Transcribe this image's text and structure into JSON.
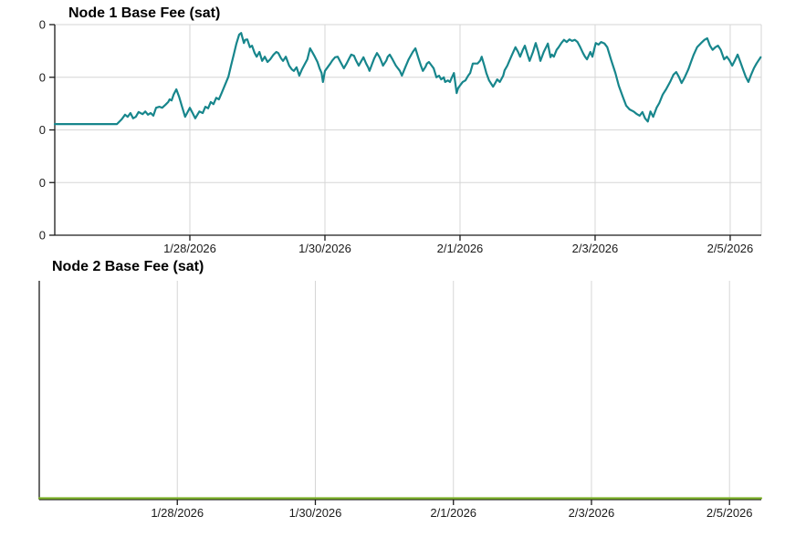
{
  "page_background": "#ffffff",
  "colors": {
    "node1_line": "#17868C",
    "node2_line": "#7FB32B",
    "gridline": "#D6D6D6",
    "axis": "#1A1A1A",
    "tick_text": "#1B1B1B",
    "title_text": "#000000"
  },
  "chart_data": [
    {
      "type": "line",
      "title": "Node 1 Base Fee (sat)",
      "xlabel": "",
      "ylabel": "",
      "x_unit": "days (0 = left edge of axis, ticks every 2 days)",
      "xlim": [
        0,
        10.46
      ],
      "ylim": [
        0,
        4
      ],
      "grid": {
        "horizontal": true,
        "vertical": true
      },
      "legend": null,
      "x_ticks": [
        {
          "pos": 2,
          "label": "1/28/2026"
        },
        {
          "pos": 4,
          "label": "1/30/2026"
        },
        {
          "pos": 6,
          "label": "2/1/2026"
        },
        {
          "pos": 8,
          "label": "2/3/2026"
        },
        {
          "pos": 10,
          "label": "2/5/2026"
        }
      ],
      "y_ticks": [
        {
          "value": 0,
          "label": "0"
        },
        {
          "value": 1,
          "label": "0"
        },
        {
          "value": 2,
          "label": "0"
        },
        {
          "value": 3,
          "label": "0"
        },
        {
          "value": 4,
          "label": "0"
        }
      ],
      "series": [
        {
          "name": "Node 1 base fee",
          "color": "#17868C",
          "points": [
            [
              0.0,
              2.11
            ],
            [
              0.14,
              2.11
            ],
            [
              0.27,
              2.11
            ],
            [
              0.41,
              2.11
            ],
            [
              0.54,
              2.11
            ],
            [
              0.68,
              2.11
            ],
            [
              0.81,
              2.11
            ],
            [
              0.92,
              2.11
            ],
            [
              0.99,
              2.2
            ],
            [
              1.04,
              2.29
            ],
            [
              1.08,
              2.25
            ],
            [
              1.12,
              2.32
            ],
            [
              1.16,
              2.22
            ],
            [
              1.2,
              2.25
            ],
            [
              1.24,
              2.34
            ],
            [
              1.3,
              2.3
            ],
            [
              1.34,
              2.35
            ],
            [
              1.38,
              2.29
            ],
            [
              1.42,
              2.32
            ],
            [
              1.46,
              2.27
            ],
            [
              1.5,
              2.42
            ],
            [
              1.55,
              2.44
            ],
            [
              1.59,
              2.42
            ],
            [
              1.64,
              2.48
            ],
            [
              1.68,
              2.53
            ],
            [
              1.7,
              2.58
            ],
            [
              1.73,
              2.56
            ],
            [
              1.76,
              2.67
            ],
            [
              1.8,
              2.77
            ],
            [
              1.84,
              2.63
            ],
            [
              1.88,
              2.46
            ],
            [
              1.93,
              2.25
            ],
            [
              2.0,
              2.42
            ],
            [
              2.04,
              2.32
            ],
            [
              2.08,
              2.22
            ],
            [
              2.14,
              2.35
            ],
            [
              2.19,
              2.32
            ],
            [
              2.23,
              2.44
            ],
            [
              2.27,
              2.41
            ],
            [
              2.31,
              2.53
            ],
            [
              2.35,
              2.49
            ],
            [
              2.39,
              2.61
            ],
            [
              2.43,
              2.58
            ],
            [
              2.47,
              2.7
            ],
            [
              2.51,
              2.82
            ],
            [
              2.57,
              3.01
            ],
            [
              2.61,
              3.22
            ],
            [
              2.65,
              3.43
            ],
            [
              2.69,
              3.64
            ],
            [
              2.73,
              3.81
            ],
            [
              2.76,
              3.84
            ],
            [
              2.8,
              3.65
            ],
            [
              2.82,
              3.71
            ],
            [
              2.85,
              3.72
            ],
            [
              2.89,
              3.57
            ],
            [
              2.92,
              3.6
            ],
            [
              2.96,
              3.46
            ],
            [
              2.99,
              3.39
            ],
            [
              3.03,
              3.48
            ],
            [
              3.07,
              3.31
            ],
            [
              3.11,
              3.39
            ],
            [
              3.15,
              3.29
            ],
            [
              3.19,
              3.34
            ],
            [
              3.24,
              3.43
            ],
            [
              3.28,
              3.48
            ],
            [
              3.31,
              3.46
            ],
            [
              3.35,
              3.36
            ],
            [
              3.38,
              3.31
            ],
            [
              3.42,
              3.39
            ],
            [
              3.47,
              3.22
            ],
            [
              3.51,
              3.15
            ],
            [
              3.54,
              3.12
            ],
            [
              3.58,
              3.19
            ],
            [
              3.62,
              3.03
            ],
            [
              3.66,
              3.15
            ],
            [
              3.69,
              3.22
            ],
            [
              3.74,
              3.34
            ],
            [
              3.78,
              3.55
            ],
            [
              3.82,
              3.46
            ],
            [
              3.85,
              3.39
            ],
            [
              3.89,
              3.29
            ],
            [
              3.92,
              3.17
            ],
            [
              3.95,
              3.08
            ],
            [
              3.97,
              2.91
            ],
            [
              4.0,
              3.12
            ],
            [
              4.04,
              3.19
            ],
            [
              4.08,
              3.26
            ],
            [
              4.11,
              3.32
            ],
            [
              4.15,
              3.38
            ],
            [
              4.19,
              3.39
            ],
            [
              4.23,
              3.29
            ],
            [
              4.28,
              3.17
            ],
            [
              4.32,
              3.26
            ],
            [
              4.36,
              3.36
            ],
            [
              4.39,
              3.43
            ],
            [
              4.43,
              3.41
            ],
            [
              4.46,
              3.32
            ],
            [
              4.5,
              3.22
            ],
            [
              4.54,
              3.31
            ],
            [
              4.57,
              3.38
            ],
            [
              4.61,
              3.26
            ],
            [
              4.64,
              3.19
            ],
            [
              4.66,
              3.12
            ],
            [
              4.7,
              3.26
            ],
            [
              4.73,
              3.36
            ],
            [
              4.77,
              3.46
            ],
            [
              4.81,
              3.38
            ],
            [
              4.84,
              3.29
            ],
            [
              4.86,
              3.22
            ],
            [
              4.91,
              3.32
            ],
            [
              4.93,
              3.39
            ],
            [
              4.96,
              3.43
            ],
            [
              5.0,
              3.34
            ],
            [
              5.05,
              3.22
            ],
            [
              5.11,
              3.12
            ],
            [
              5.14,
              3.03
            ],
            [
              5.19,
              3.19
            ],
            [
              5.24,
              3.34
            ],
            [
              5.3,
              3.48
            ],
            [
              5.34,
              3.55
            ],
            [
              5.38,
              3.38
            ],
            [
              5.42,
              3.22
            ],
            [
              5.45,
              3.12
            ],
            [
              5.49,
              3.2
            ],
            [
              5.51,
              3.26
            ],
            [
              5.54,
              3.29
            ],
            [
              5.58,
              3.22
            ],
            [
              5.61,
              3.17
            ],
            [
              5.65,
              3.0
            ],
            [
              5.69,
              3.03
            ],
            [
              5.72,
              2.96
            ],
            [
              5.76,
              3.0
            ],
            [
              5.78,
              2.91
            ],
            [
              5.82,
              2.94
            ],
            [
              5.85,
              2.91
            ],
            [
              5.88,
              3.0
            ],
            [
              5.91,
              3.08
            ],
            [
              5.95,
              2.7
            ],
            [
              5.97,
              2.79
            ],
            [
              6.01,
              2.86
            ],
            [
              6.04,
              2.91
            ],
            [
              6.08,
              2.94
            ],
            [
              6.12,
              3.03
            ],
            [
              6.15,
              3.08
            ],
            [
              6.19,
              3.26
            ],
            [
              6.23,
              3.26
            ],
            [
              6.26,
              3.26
            ],
            [
              6.3,
              3.32
            ],
            [
              6.32,
              3.39
            ],
            [
              6.36,
              3.22
            ],
            [
              6.39,
              3.08
            ],
            [
              6.43,
              2.94
            ],
            [
              6.49,
              2.82
            ],
            [
              6.53,
              2.91
            ],
            [
              6.55,
              2.96
            ],
            [
              6.59,
              2.91
            ],
            [
              6.64,
              3.03
            ],
            [
              6.66,
              3.13
            ],
            [
              6.7,
              3.22
            ],
            [
              6.73,
              3.31
            ],
            [
              6.77,
              3.43
            ],
            [
              6.82,
              3.57
            ],
            [
              6.86,
              3.48
            ],
            [
              6.89,
              3.39
            ],
            [
              6.93,
              3.52
            ],
            [
              6.96,
              3.6
            ],
            [
              7.0,
              3.43
            ],
            [
              7.03,
              3.31
            ],
            [
              7.08,
              3.48
            ],
            [
              7.12,
              3.65
            ],
            [
              7.16,
              3.48
            ],
            [
              7.19,
              3.31
            ],
            [
              7.24,
              3.48
            ],
            [
              7.3,
              3.64
            ],
            [
              7.34,
              3.38
            ],
            [
              7.36,
              3.43
            ],
            [
              7.39,
              3.39
            ],
            [
              7.43,
              3.52
            ],
            [
              7.46,
              3.57
            ],
            [
              7.5,
              3.65
            ],
            [
              7.54,
              3.71
            ],
            [
              7.58,
              3.67
            ],
            [
              7.62,
              3.72
            ],
            [
              7.66,
              3.69
            ],
            [
              7.7,
              3.71
            ],
            [
              7.74,
              3.67
            ],
            [
              7.78,
              3.57
            ],
            [
              7.82,
              3.46
            ],
            [
              7.85,
              3.39
            ],
            [
              7.88,
              3.34
            ],
            [
              7.93,
              3.48
            ],
            [
              7.96,
              3.39
            ],
            [
              8.01,
              3.65
            ],
            [
              8.05,
              3.62
            ],
            [
              8.09,
              3.67
            ],
            [
              8.14,
              3.64
            ],
            [
              8.18,
              3.57
            ],
            [
              8.24,
              3.32
            ],
            [
              8.3,
              3.08
            ],
            [
              8.35,
              2.84
            ],
            [
              8.41,
              2.63
            ],
            [
              8.46,
              2.46
            ],
            [
              8.51,
              2.39
            ],
            [
              8.57,
              2.35
            ],
            [
              8.62,
              2.3
            ],
            [
              8.66,
              2.27
            ],
            [
              8.7,
              2.34
            ],
            [
              8.74,
              2.22
            ],
            [
              8.78,
              2.16
            ],
            [
              8.82,
              2.35
            ],
            [
              8.86,
              2.25
            ],
            [
              8.91,
              2.42
            ],
            [
              8.95,
              2.51
            ],
            [
              9.0,
              2.67
            ],
            [
              9.05,
              2.77
            ],
            [
              9.11,
              2.91
            ],
            [
              9.16,
              3.05
            ],
            [
              9.2,
              3.1
            ],
            [
              9.24,
              3.01
            ],
            [
              9.28,
              2.89
            ],
            [
              9.32,
              2.98
            ],
            [
              9.38,
              3.15
            ],
            [
              9.42,
              3.29
            ],
            [
              9.46,
              3.43
            ],
            [
              9.51,
              3.57
            ],
            [
              9.57,
              3.65
            ],
            [
              9.62,
              3.71
            ],
            [
              9.66,
              3.74
            ],
            [
              9.7,
              3.6
            ],
            [
              9.74,
              3.52
            ],
            [
              9.78,
              3.57
            ],
            [
              9.82,
              3.6
            ],
            [
              9.86,
              3.52
            ],
            [
              9.91,
              3.34
            ],
            [
              9.95,
              3.39
            ],
            [
              9.99,
              3.32
            ],
            [
              10.03,
              3.22
            ],
            [
              10.07,
              3.32
            ],
            [
              10.11,
              3.43
            ],
            [
              10.15,
              3.29
            ],
            [
              10.19,
              3.15
            ],
            [
              10.23,
              3.01
            ],
            [
              10.27,
              2.91
            ],
            [
              10.31,
              3.05
            ],
            [
              10.35,
              3.17
            ],
            [
              10.39,
              3.26
            ],
            [
              10.45,
              3.38
            ]
          ]
        }
      ]
    },
    {
      "type": "line",
      "title": "Node 2 Base Fee (sat)",
      "xlabel": "",
      "ylabel": "",
      "x_unit": "days (0 = left edge of axis, ticks every 2 days)",
      "xlim": [
        0,
        10.46
      ],
      "ylim": [
        0,
        1
      ],
      "grid": {
        "horizontal": false,
        "vertical": true
      },
      "legend": null,
      "x_ticks": [
        {
          "pos": 2,
          "label": "1/28/2026"
        },
        {
          "pos": 4,
          "label": "1/30/2026"
        },
        {
          "pos": 6,
          "label": "2/1/2026"
        },
        {
          "pos": 8,
          "label": "2/3/2026"
        },
        {
          "pos": 10,
          "label": "2/5/2026"
        }
      ],
      "y_ticks": [],
      "series": [
        {
          "name": "Node 2 base fee",
          "color": "#7FB32B",
          "points": [
            [
              0,
              0
            ],
            [
              10.46,
              0
            ]
          ]
        }
      ]
    }
  ]
}
